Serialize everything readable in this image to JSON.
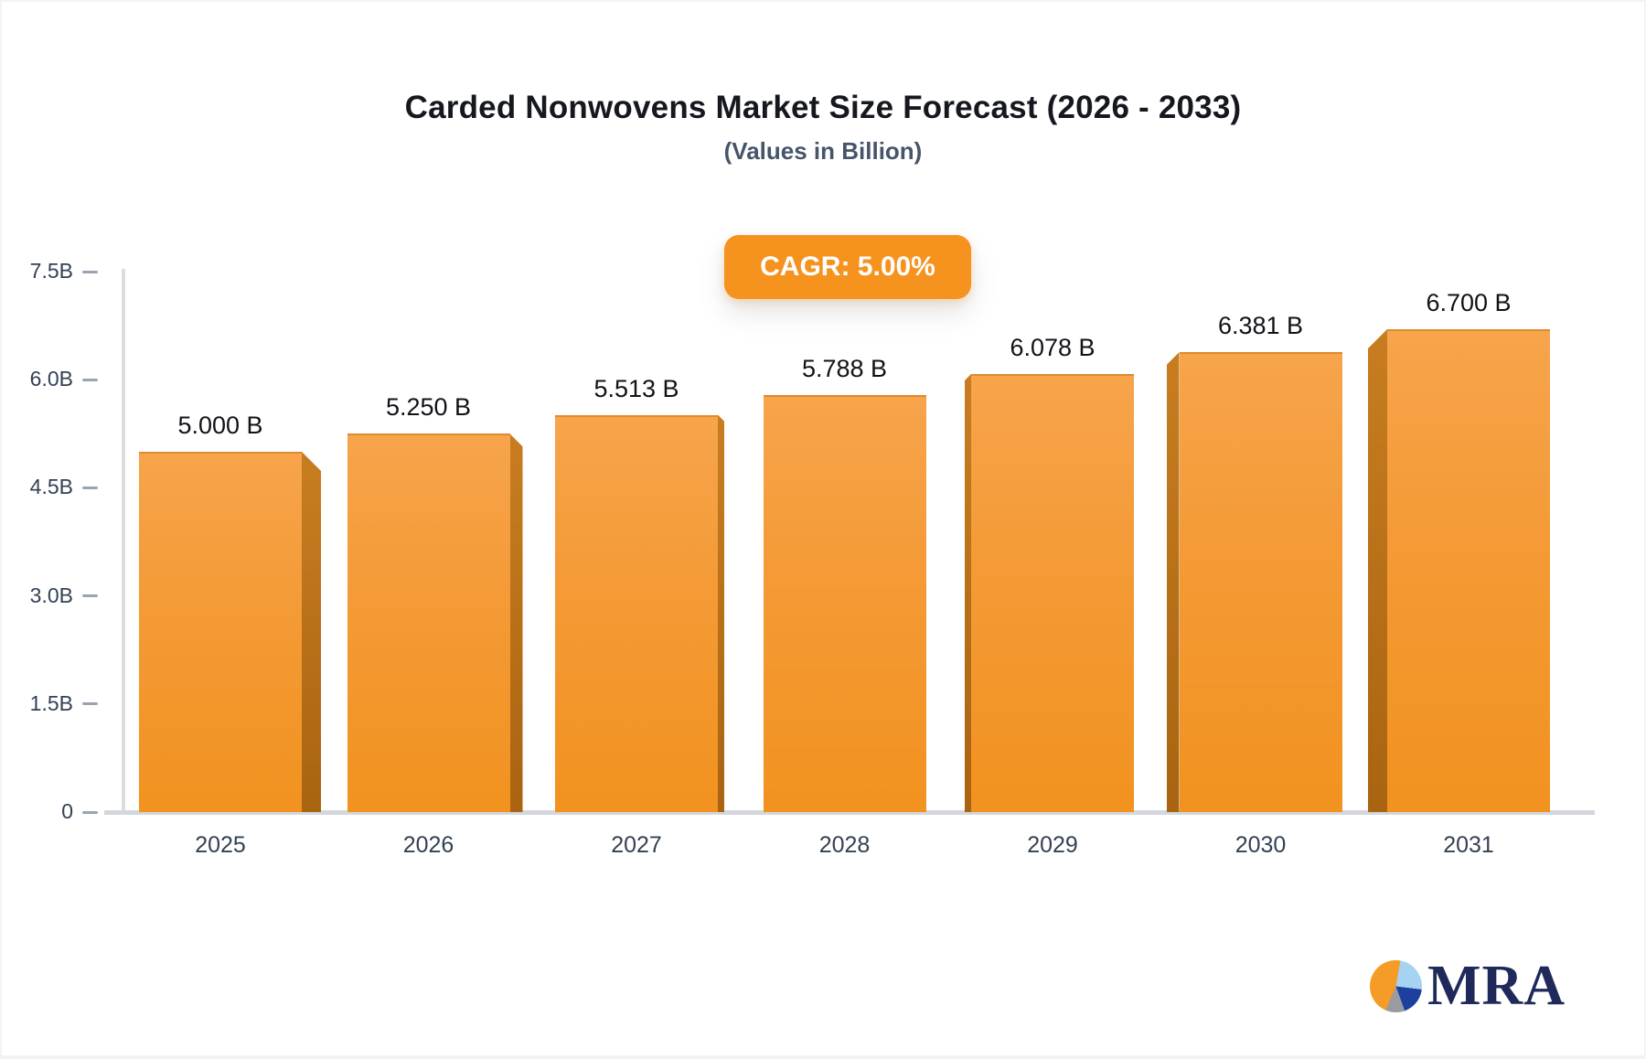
{
  "header": {
    "title": "Carded Nonwovens Market Size Forecast (2026 - 2033)",
    "subtitle": "(Values in Billion)"
  },
  "badge": {
    "label": "CAGR: 5.00%",
    "bg": "#F6921E",
    "text_color": "#FFFFFF"
  },
  "chart_data": {
    "type": "bar",
    "title": "Carded Nonwovens Market Size Forecast (2026 - 2033)",
    "subtitle": "(Values in Billion)",
    "categories": [
      "2025",
      "2026",
      "2027",
      "2028",
      "2029",
      "2030",
      "2031"
    ],
    "values": [
      5.0,
      5.25,
      5.513,
      5.788,
      6.078,
      6.381,
      6.7
    ],
    "value_labels": [
      "5.000 B",
      "5.250 B",
      "5.513 B",
      "5.788 B",
      "6.078 B",
      "6.381 B",
      "6.700 B"
    ],
    "cagr": "CAGR: 5.00%",
    "xlabel": "",
    "ylabel": "",
    "ylim": [
      0,
      7.5
    ],
    "yticks": [
      {
        "value": 0,
        "label": "0"
      },
      {
        "value": 1.5,
        "label": "1.5B"
      },
      {
        "value": 3.0,
        "label": "3.0B"
      },
      {
        "value": 4.5,
        "label": "4.5B"
      },
      {
        "value": 6.0,
        "label": "6.0B"
      },
      {
        "value": 7.5,
        "label": "7.5B"
      }
    ],
    "grid": false,
    "legend": false,
    "style": "3d-perspective-columns",
    "colors": {
      "bar_face_top": "#F7A44B",
      "bar_face_bottom": "#F2921F",
      "bar_top_edge": "#DE8A2F",
      "bar_side_top": "#C87D20",
      "bar_side_bottom": "#A96411",
      "axis_line": "#D9DDE2",
      "tick": "#9AA3AF",
      "tick_text": "#334155",
      "value_text": "#111318"
    }
  },
  "logo": {
    "text": "MRA",
    "icon": "pie-chart-icon",
    "colors": {
      "orange": "#F49B28",
      "light_blue": "#A7D3F2",
      "navy_slice": "#1D3F9E",
      "gray_slice": "#9A9AA2",
      "text_navy": "#1F2A5A"
    }
  }
}
